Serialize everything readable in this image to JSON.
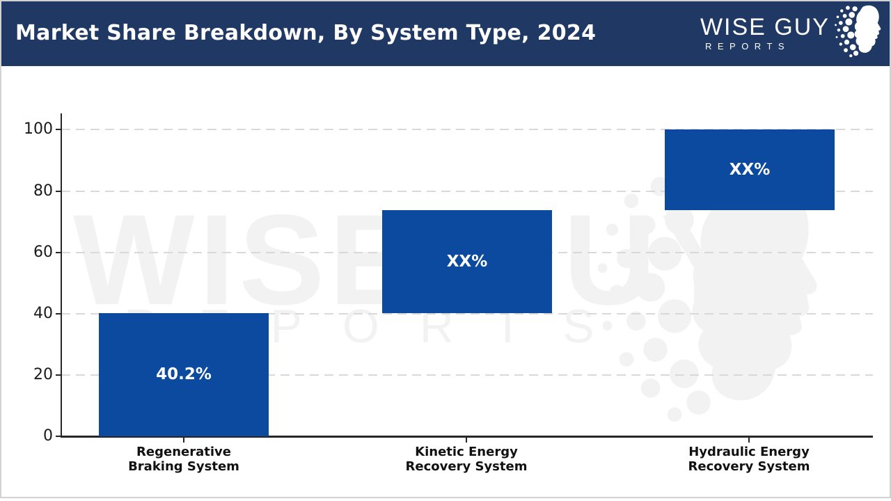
{
  "header": {
    "title": "Market Share Breakdown, By System Type, 2024",
    "logo": {
      "name": "WISE GUY",
      "sub": "REPORTS"
    }
  },
  "watermark": {
    "big": "WISE GUY",
    "sub": "REPORTS"
  },
  "chart_data": {
    "type": "bar",
    "subtype": "waterfall",
    "title": "Market Share Breakdown, By System Type, 2024",
    "categories": [
      {
        "line1": "Regenerative",
        "line2": "Braking System"
      },
      {
        "line1": "Kinetic Energy",
        "line2": "Recovery System"
      },
      {
        "line1": "Hydraulic Energy",
        "line2": "Recovery System"
      }
    ],
    "segments": [
      {
        "start": 0,
        "end": 40.2,
        "value": 40.2,
        "label": "40.2%"
      },
      {
        "start": 40.2,
        "end": 73.8,
        "value": 33.6,
        "label": "XX%"
      },
      {
        "start": 73.8,
        "end": 100,
        "value": 26.2,
        "label": "XX%"
      }
    ],
    "ylim": [
      0,
      100
    ],
    "yticks": [
      0,
      20,
      40,
      60,
      80,
      100
    ],
    "ytick_labels": [
      "100",
      "80",
      "60",
      "40",
      "20",
      "0"
    ],
    "xlabel": "",
    "ylabel": "",
    "grid": "horizontal-dashed",
    "legend": "none",
    "bar_color": "#0b4a9e",
    "value_label_color": "#ffffff"
  },
  "colors": {
    "header_bg": "#1f3864",
    "bar": "#0b4a9e",
    "grid": "#d9d9d9",
    "axis": "#262626",
    "watermark": "#f2f2f2",
    "page_border": "#d2d2d2"
  }
}
